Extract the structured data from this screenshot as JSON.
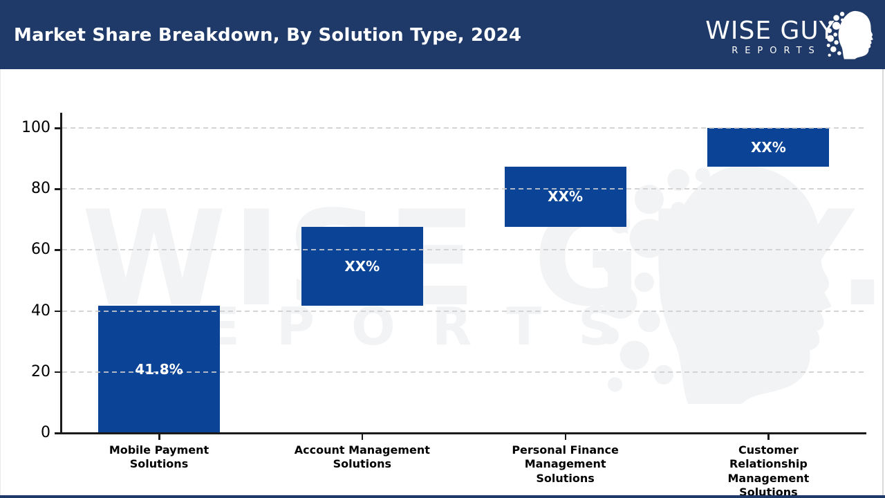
{
  "header": {
    "title": "Market Share Breakdown, By Solution Type, 2024",
    "logo": {
      "wordmark": "WISE GUY",
      "subtitle": "REPORTS"
    }
  },
  "watermark": {
    "line1": "WISE GUY.",
    "line2": "REPORTS"
  },
  "chart_data": {
    "type": "bar",
    "subtype": "waterfall",
    "title": "Market Share Breakdown, By Solution Type, 2024",
    "categories": [
      "Mobile Payment\nSolutions",
      "Account Management\nSolutions",
      "Personal Finance\nManagement\nSolutions",
      "Customer\nRelationship\nManagement\nSolutions"
    ],
    "segments": [
      {
        "category": "Mobile Payment Solutions",
        "start": 0,
        "end": 41.8,
        "label": "41.8%"
      },
      {
        "category": "Account Management Solutions",
        "start": 41.8,
        "end": 67.6,
        "label": "XX%"
      },
      {
        "category": "Personal Finance Management Solutions",
        "start": 67.6,
        "end": 87.4,
        "label": "XX%"
      },
      {
        "category": "Customer Relationship Management Solutions",
        "start": 87.4,
        "end": 100,
        "label": "XX%"
      }
    ],
    "yticks": [
      0,
      20,
      40,
      60,
      80,
      100
    ],
    "ylim": [
      0,
      104.5
    ],
    "xlabel": "",
    "ylabel": "",
    "grid": true,
    "legend": false,
    "bar_color": "#0b4496",
    "colors": {
      "header_bg": "#1f3a68",
      "grid": "#cdcdcd",
      "axis": "#1a1a1a",
      "watermark": "#f2f3f5",
      "bar_label_text": "#ffffff",
      "tick_label_text": "#000000"
    }
  }
}
